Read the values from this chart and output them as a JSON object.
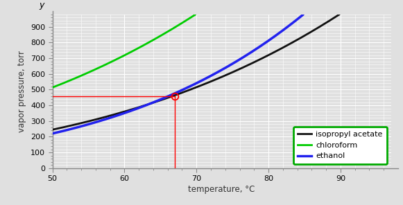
{
  "xlabel": "temperature, °C",
  "ylabel": "vapor pressure, torr",
  "xlim": [
    50,
    97
  ],
  "ylim": [
    0,
    980
  ],
  "yticks": [
    0,
    100,
    200,
    300,
    400,
    500,
    600,
    700,
    800,
    900
  ],
  "xticks": [
    50,
    60,
    70,
    80,
    90
  ],
  "bg_color": "#e0e0e0",
  "grid_color": "#ffffff",
  "curves": {
    "isopropyl_acetate": {
      "color": "#111111",
      "lw": 2.0,
      "A": 7.02447,
      "B": 1237.63,
      "C": 217.0
    },
    "chloroform": {
      "color": "#00cc00",
      "lw": 2.0,
      "A": 6.90328,
      "B": 1163.03,
      "C": 227.4
    },
    "ethanol": {
      "color": "#2222ee",
      "lw": 2.5,
      "A": 8.20417,
      "B": 1642.89,
      "C": 230.3
    }
  },
  "redline_x": 67.0,
  "redline_y": 460.0,
  "legend_labels": [
    "isopropyl acetate",
    "chloroform",
    "ethanol"
  ],
  "legend_colors": [
    "#111111",
    "#00cc00",
    "#2222ee"
  ],
  "y_axis_label": "y",
  "axis_color": "#888888",
  "spine_color": "#888888"
}
